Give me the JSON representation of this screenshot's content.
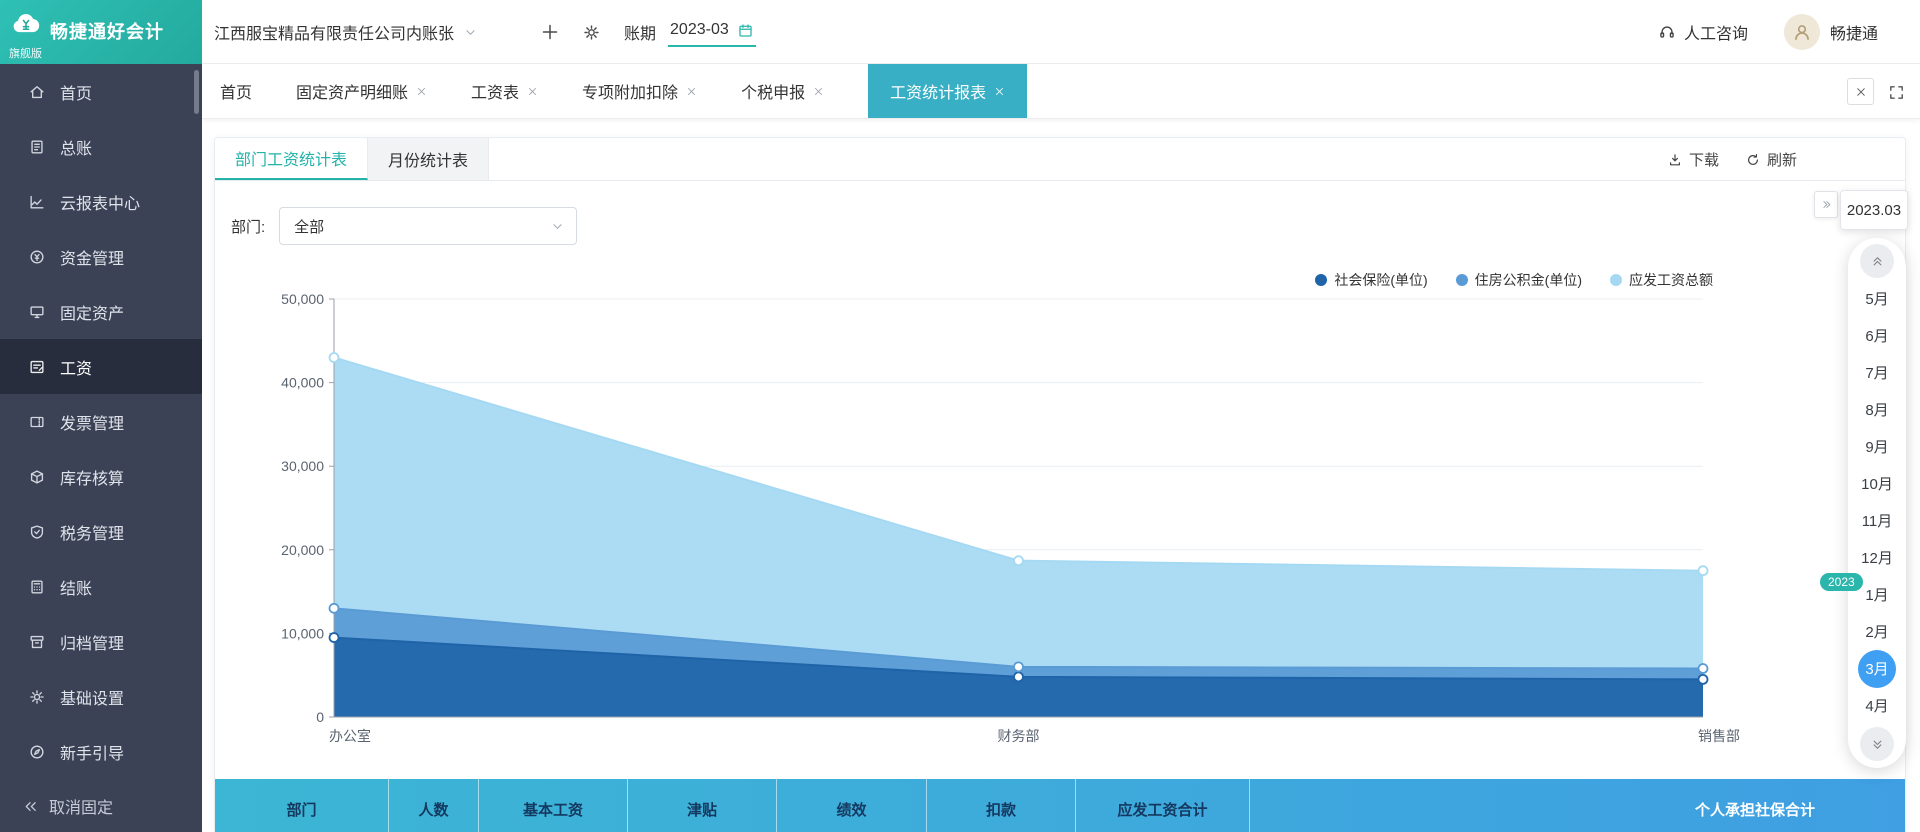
{
  "colors": {
    "brand_teal": "#2bb6ac",
    "active_tab_bg": "#38afc4",
    "active_month_blue": "#3f9ff2",
    "sidebar_bg": "#3c4256",
    "table_header_gradient": [
      "#3cb6d4",
      "#3f9fe2"
    ]
  },
  "header": {
    "brand_title": "畅捷通好会计",
    "brand_edition": "旗舰版",
    "company": "江西服宝精品有限责任公司内账张",
    "period_label": "账期",
    "period_value": "2023-03",
    "support_label": "人工咨询",
    "username": "畅捷通"
  },
  "sidebar": {
    "items": [
      {
        "label": "首页",
        "icon": "home-icon",
        "active": false
      },
      {
        "label": "总账",
        "icon": "ledger-icon",
        "active": false
      },
      {
        "label": "云报表中心",
        "icon": "cloud-report-icon",
        "active": false
      },
      {
        "label": "资金管理",
        "icon": "funds-icon",
        "active": false
      },
      {
        "label": "固定资产",
        "icon": "fixed-assets-icon",
        "active": false
      },
      {
        "label": "工资",
        "icon": "salary-icon",
        "active": true
      },
      {
        "label": "发票管理",
        "icon": "invoice-icon",
        "active": false
      },
      {
        "label": "库存核算",
        "icon": "inventory-icon",
        "active": false
      },
      {
        "label": "税务管理",
        "icon": "tax-icon",
        "active": false
      },
      {
        "label": "结账",
        "icon": "closing-icon",
        "active": false
      },
      {
        "label": "归档管理",
        "icon": "archive-icon",
        "active": false
      },
      {
        "label": "基础设置",
        "icon": "settings-icon",
        "active": false
      },
      {
        "label": "新手引导",
        "icon": "guide-icon",
        "active": false
      }
    ],
    "pin_toggle": "取消固定"
  },
  "tabs": [
    {
      "label": "首页",
      "closable": false,
      "active": false
    },
    {
      "label": "固定资产明细账",
      "closable": true,
      "active": false
    },
    {
      "label": "工资表",
      "closable": true,
      "active": false
    },
    {
      "label": "专项附加扣除",
      "closable": true,
      "active": false
    },
    {
      "label": "个税申报",
      "closable": true,
      "active": false
    },
    {
      "label": "工资统计报表",
      "closable": true,
      "active": true
    }
  ],
  "report": {
    "subtabs": [
      {
        "label": "部门工资统计表",
        "active": true
      },
      {
        "label": "月份统计表",
        "active": false
      }
    ],
    "download": "下载",
    "refresh": "刷新",
    "filter_label": "部门:",
    "filter_value": "全部"
  },
  "chart_data": {
    "type": "area",
    "categories": [
      "办公室",
      "财务部",
      "销售部"
    ],
    "series": [
      {
        "name": "社会保险(单位)",
        "color": "#1f63a8",
        "fill": "rgba(31,99,168,0.88)",
        "values": [
          9500,
          4800,
          4500
        ]
      },
      {
        "name": "住房公积金(单位)",
        "color": "#5b9bd5",
        "fill": "rgba(91,155,213,0.95)",
        "values": [
          13000,
          6000,
          5800
        ]
      },
      {
        "name": "应发工资总额",
        "color": "#a5d9f3",
        "fill": "rgba(169,219,243,0.97)",
        "values": [
          43000,
          18700,
          17500
        ]
      }
    ],
    "ylim": [
      0,
      50000
    ],
    "yticks": [
      0,
      10000,
      20000,
      30000,
      40000,
      50000
    ],
    "legend_position": "top-right",
    "grid": true
  },
  "table": {
    "columns": [
      "部门",
      "人数",
      "基本工资",
      "津贴",
      "绩效",
      "扣款",
      "应发工资合计",
      "个人承担社保合计"
    ]
  },
  "month_panel": {
    "current": "2023.03",
    "year_badge": "2023",
    "months": [
      "5月",
      "6月",
      "7月",
      "8月",
      "9月",
      "10月",
      "11月",
      "12月",
      "1月",
      "2月",
      "3月",
      "4月"
    ],
    "active_month": "3月"
  }
}
